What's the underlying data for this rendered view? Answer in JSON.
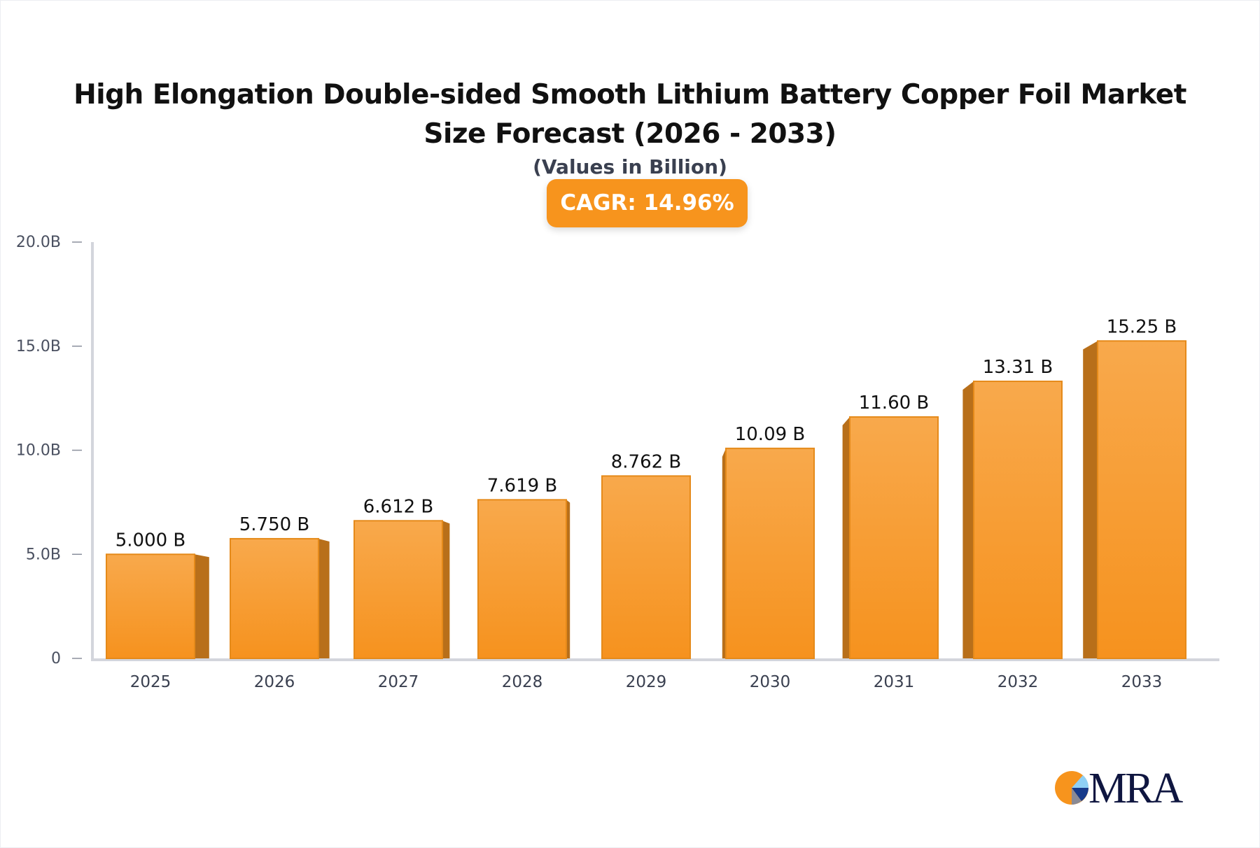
{
  "chart_data": {
    "type": "bar",
    "title": "High Elongation Double-sided Smooth Lithium Battery Copper Foil Market Size Forecast (2026 - 2033)",
    "subtitle": "(Values in Billion)",
    "annotation": "CAGR: 14.96%",
    "categories": [
      "2025",
      "2026",
      "2027",
      "2028",
      "2029",
      "2030",
      "2031",
      "2032",
      "2033"
    ],
    "values": [
      5.0,
      5.75,
      6.612,
      7.619,
      8.762,
      10.09,
      11.6,
      13.31,
      15.25
    ],
    "data_labels": [
      "5.000 B",
      "5.750 B",
      "6.612 B",
      "7.619 B",
      "8.762 B",
      "10.09 B",
      "11.60 B",
      "13.31 B",
      "15.25 B"
    ],
    "y_ticks": [
      0,
      5,
      10,
      15,
      20
    ],
    "y_tick_labels": [
      "0",
      "5.0B",
      "10.0B",
      "15.0B",
      "20.0B"
    ],
    "ylim": [
      0,
      20
    ],
    "xlabel": "",
    "ylabel": "",
    "grid": false,
    "legend": "none",
    "colors": {
      "bar": "#F7941D",
      "bar_top": "#F8A94C",
      "bar_side": "#B86F1A",
      "axis": "#d3d5dc"
    }
  },
  "logo": {
    "text": "MRA"
  }
}
